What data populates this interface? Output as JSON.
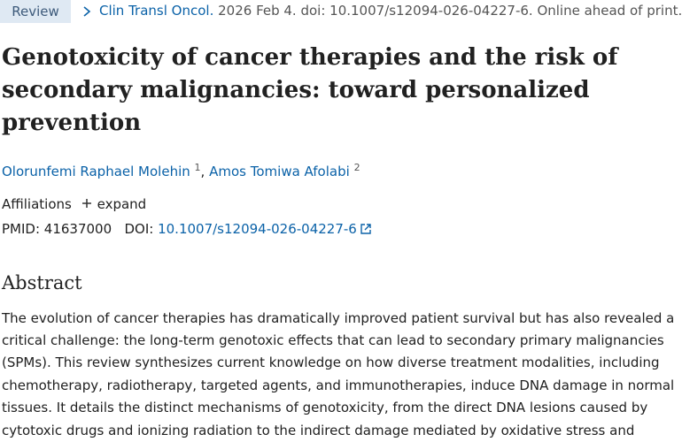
{
  "header": {
    "badge": "Review",
    "journal": "Clin Transl Oncol.",
    "citation": "2026 Feb 4. doi: 10.1007/s12094-026-04227-6. Online ahead of print."
  },
  "title_lines": [
    "Genotoxicity of cancer therapies and the risk of",
    "secondary malignancies: toward personalized",
    "prevention"
  ],
  "authors": [
    {
      "name": "Olorunfemi Raphael Molehin",
      "affiliation": "1"
    },
    {
      "name": "Amos Tomiwa Afolabi",
      "affiliation": "2"
    }
  ],
  "author_separator": ",",
  "affiliations": {
    "label": "Affiliations",
    "toggle": "expand"
  },
  "identifiers": {
    "pmid_label": "PMID:",
    "pmid": "41637000",
    "doi_label": "DOI:",
    "doi": "10.1007/s12094-026-04227-6"
  },
  "abstract": {
    "heading": "Abstract",
    "lines": [
      "The evolution of cancer therapies has dramatically improved patient survival but has also revealed a",
      "critical challenge: the long-term genotoxic effects that can lead to secondary primary malignancies",
      "(SPMs). This review synthesizes current knowledge on how diverse treatment modalities, including",
      "chemotherapy, radiotherapy, targeted agents, and immunotherapies, induce DNA damage in normal",
      "tissues. It details the distinct mechanisms of genotoxicity, from the direct DNA lesions caused by",
      "cytotoxic drugs and ionizing radiation to the indirect damage mediated by oxidative stress and"
    ]
  }
}
